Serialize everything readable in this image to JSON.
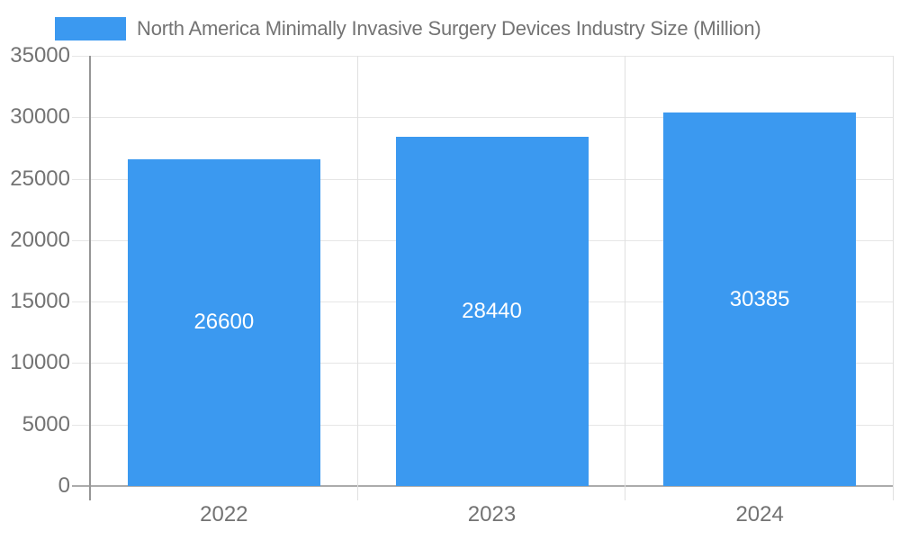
{
  "legend": {
    "label": "North America Minimally Invasive Surgery Devices Industry Size (Million)",
    "color": "#3B99F0"
  },
  "chart_data": {
    "type": "bar",
    "title": "North America Minimally Invasive Surgery Devices Industry Size (Million)",
    "categories": [
      "2022",
      "2023",
      "2024"
    ],
    "series": [
      {
        "name": "North America Minimally Invasive Surgery Devices Industry Size (Million)",
        "values": [
          26600,
          28440,
          30385
        ],
        "color": "#3B99F0"
      }
    ],
    "value_labels": [
      "26600",
      "28440",
      "30385"
    ],
    "xlabel": "",
    "ylabel": "",
    "ylim": [
      0,
      35000
    ],
    "yticks": [
      0,
      5000,
      10000,
      15000,
      20000,
      25000,
      30000,
      35000
    ],
    "grid": true,
    "legend_position": "top-left"
  },
  "colors": {
    "bar": "#3B99F0",
    "grid": "#e6e6e6",
    "axis": "#969696",
    "baseline": "#ababab",
    "separator": "#e0e0e0",
    "text": "#737373",
    "bar_label": "#ffffff",
    "background": "#ffffff"
  }
}
